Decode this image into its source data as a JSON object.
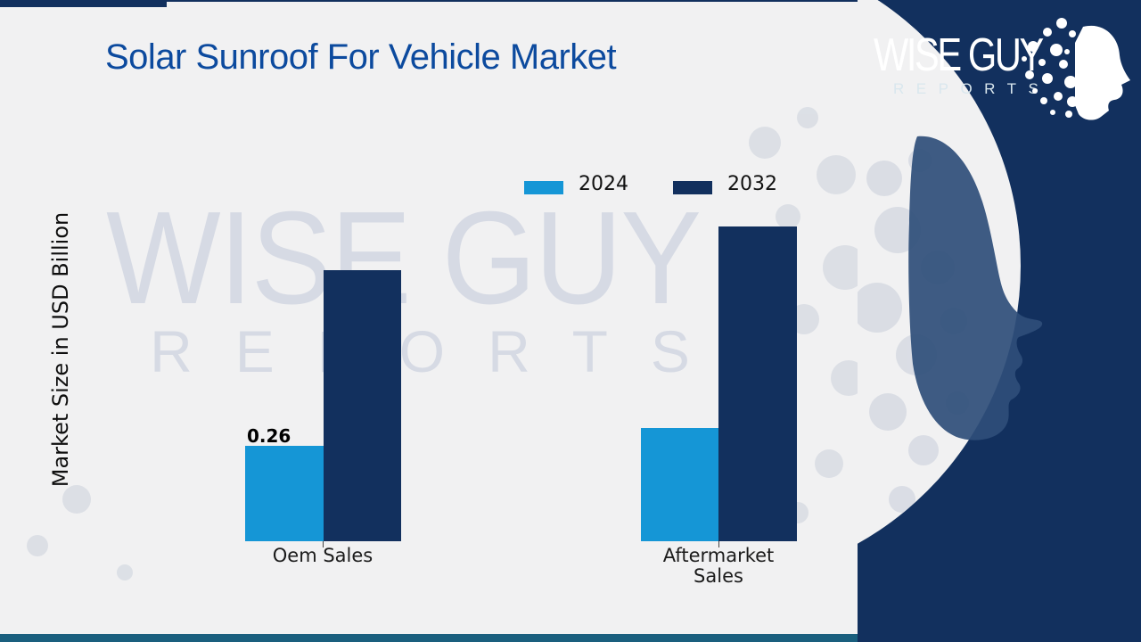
{
  "page": {
    "title": "Solar Sunroof For Vehicle Market"
  },
  "chart_data": {
    "type": "bar",
    "title": "Solar Sunroof For Vehicle Market",
    "ylabel": "Market Size in USD Billion",
    "xlabel": "",
    "categories": [
      "Oem Sales",
      "Aftermarket Sales"
    ],
    "series": [
      {
        "name": "2024",
        "color": "#1596d6",
        "values": [
          0.26,
          0.31
        ]
      },
      {
        "name": "2032",
        "color": "#12305e",
        "values": [
          0.74,
          0.86
        ]
      }
    ],
    "shown_value_labels": {
      "oem_2024": "0.26"
    },
    "ylim": [
      0,
      0.9
    ],
    "grid": false,
    "legend_position": "top-center"
  },
  "legend": {
    "items": [
      {
        "label": "2024"
      },
      {
        "label": "2032"
      }
    ]
  },
  "branding": {
    "logo_title": "WISE GUY",
    "logo_subtitle": "REPORTS",
    "watermark_title": "WISE GUY",
    "watermark_subtitle": "REPORTS"
  },
  "colors": {
    "accent_2024": "#1596d6",
    "accent_2032": "#12305e",
    "panel_navy": "#12305e",
    "panel_face": "#2f4e7a",
    "title_blue": "#0c4a9e",
    "teal_strip": "#1a5f7e",
    "background": "#f1f1f2",
    "watermark": "#d6dae4"
  }
}
